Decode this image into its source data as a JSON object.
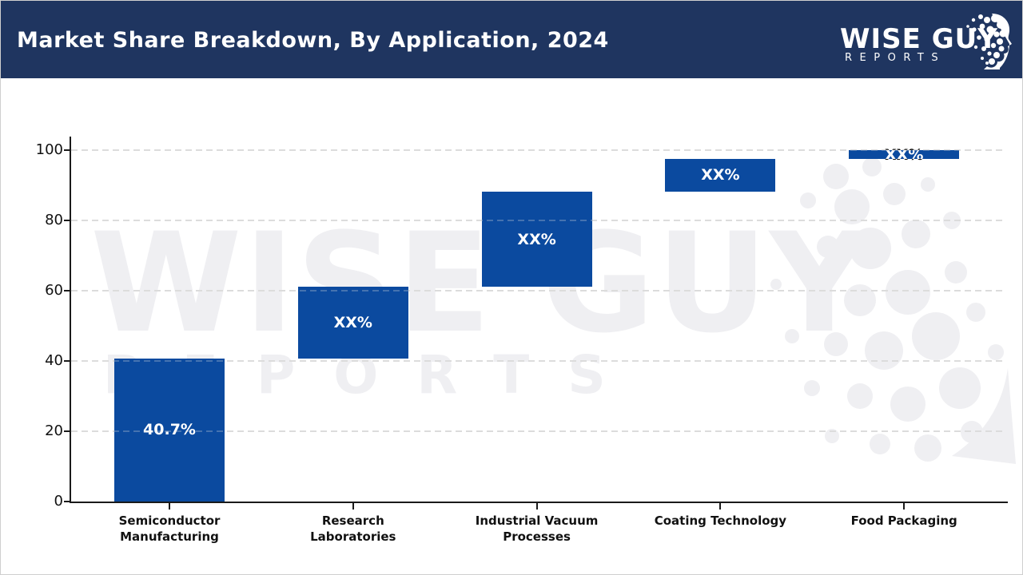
{
  "header": {
    "title": "Market Share Breakdown, By Application, 2024",
    "logo": {
      "line1": "WISE GUY",
      "line2": "REPORTS"
    }
  },
  "watermark": {
    "line1": "WISE GUY",
    "line2": "REPORTS"
  },
  "colors": {
    "header_bg": "#1f3560",
    "bar_blue": "#0b4a9f",
    "grid": "#dcdcdc",
    "axis": "#1a1a1a",
    "bar_label_white": "#ffffff",
    "bar_label_dark": "#111111",
    "watermark_gray": "#efeff2"
  },
  "chart_data": {
    "type": "bar",
    "subtype": "waterfall",
    "title": "Market Share Breakdown, By Application, 2024",
    "xlabel": "",
    "ylabel": "",
    "ylim": [
      0,
      100
    ],
    "yticks": [
      0,
      20,
      40,
      60,
      80,
      100
    ],
    "grid": "horizontal dashed",
    "legend": "none",
    "categories": [
      "Semiconductor Manufacturing",
      "Research Laboratories",
      "Industrial Vacuum Processes",
      "Coating Technology",
      "Food Packaging"
    ],
    "category_lines": [
      [
        "Semiconductor",
        "Manufacturing"
      ],
      [
        "Research",
        "Laboratories"
      ],
      [
        "Industrial Vacuum",
        "Processes"
      ],
      [
        "Coating Technology"
      ],
      [
        "Food Packaging"
      ]
    ],
    "bars": [
      {
        "category": "Semiconductor Manufacturing",
        "start": 0,
        "end": 40.7,
        "label": "40.7%"
      },
      {
        "category": "Research Laboratories",
        "start": 40.7,
        "end": 61.1,
        "label": "XX%"
      },
      {
        "category": "Industrial Vacuum Processes",
        "start": 61.1,
        "end": 88.2,
        "label": "XX%"
      },
      {
        "category": "Coating Technology",
        "start": 88.2,
        "end": 97.5,
        "label": "XX%"
      },
      {
        "category": "Food Packaging",
        "start": 97.5,
        "end": 100,
        "label": "XX%"
      }
    ]
  }
}
